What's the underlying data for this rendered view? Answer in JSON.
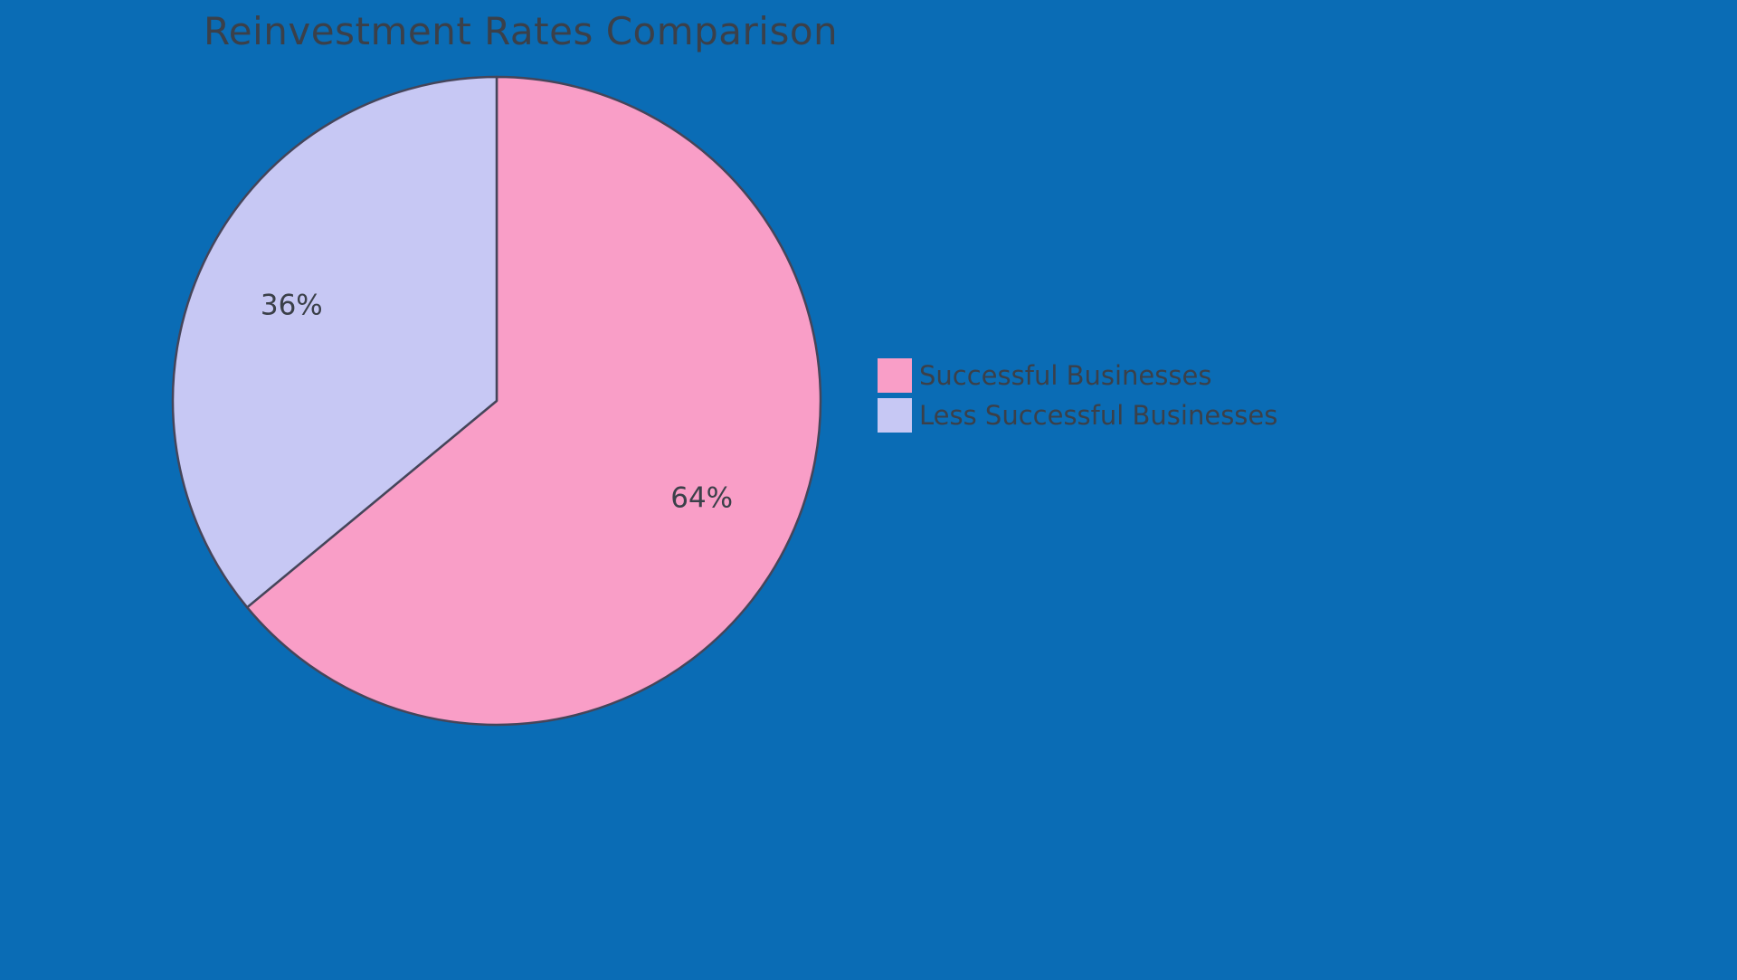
{
  "chart_data": {
    "type": "pie",
    "title": "Reinvestment Rates Comparison",
    "series": [
      {
        "label": "Successful Businesses",
        "value": 64,
        "display": "64%",
        "color": "#F99EC7"
      },
      {
        "label": "Less Successful Businesses",
        "value": 36,
        "display": "36%",
        "color": "#C7C8F4"
      }
    ],
    "start_angle_deg": -90,
    "direction": "clockwise",
    "legend_position": "right",
    "background_color": "#0A6CB5",
    "stroke_color": "#45455A",
    "text_color": "#3B4049"
  }
}
